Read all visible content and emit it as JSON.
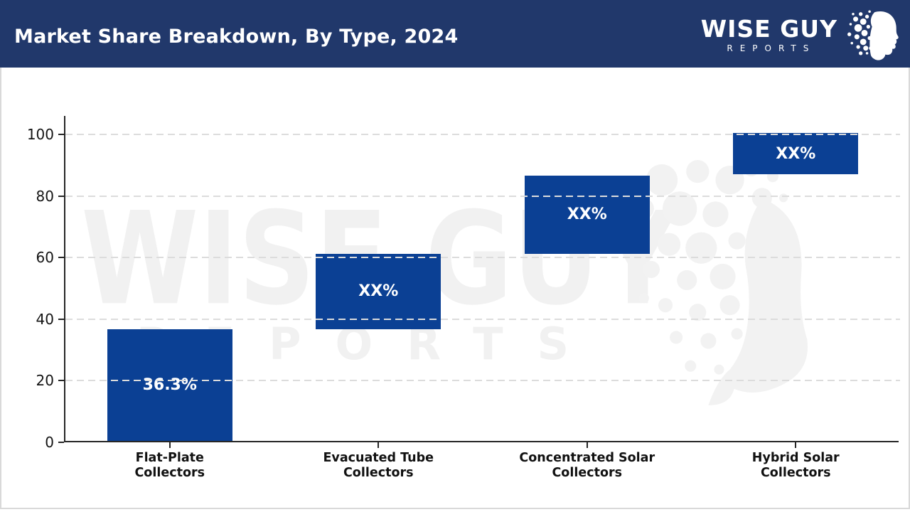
{
  "header": {
    "title": "Market Share Breakdown, By Type, 2024",
    "logo": {
      "name": "WISE GUY",
      "tagline": "REPORTS"
    }
  },
  "watermark": {
    "line1": "WISE GUY",
    "line2": "REPORTS"
  },
  "chart_data": {
    "type": "bar",
    "subtype": "stacked-waterfall",
    "title": "Market Share Breakdown, By Type, 2024",
    "categories": [
      "Flat-Plate Collectors",
      "Evacuated Tube Collectors",
      "Concentrated Solar Collectors",
      "Hybrid Solar Collectors"
    ],
    "category_lines": [
      [
        "Flat-Plate",
        "Collectors"
      ],
      [
        "Evacuated Tube",
        "Collectors"
      ],
      [
        "Concentrated Solar",
        "Collectors"
      ],
      [
        "Hybrid Solar",
        "Collectors"
      ]
    ],
    "segments": [
      {
        "category": "Flat-Plate Collectors",
        "start": 0,
        "end": 36.3,
        "label": "36.3%"
      },
      {
        "category": "Evacuated Tube Collectors",
        "start": 36.3,
        "end": 60.8,
        "label": "XX%"
      },
      {
        "category": "Concentrated Solar Collectors",
        "start": 60.8,
        "end": 86.2,
        "label": "XX%"
      },
      {
        "category": "Hybrid Solar Collectors",
        "start": 86.6,
        "end": 100,
        "label": "XX%"
      }
    ],
    "yticks": [
      0,
      20,
      40,
      60,
      80,
      100
    ],
    "ylim": [
      0,
      106
    ],
    "xlabel": "",
    "ylabel": "",
    "grid": "dashed-horizontal",
    "legend": "none",
    "bar_color": "#0b4094",
    "value_label_color": "#ffffff",
    "axis_color": "#262626",
    "grid_color": "#dcdcdc",
    "header_color": "#21386b"
  }
}
